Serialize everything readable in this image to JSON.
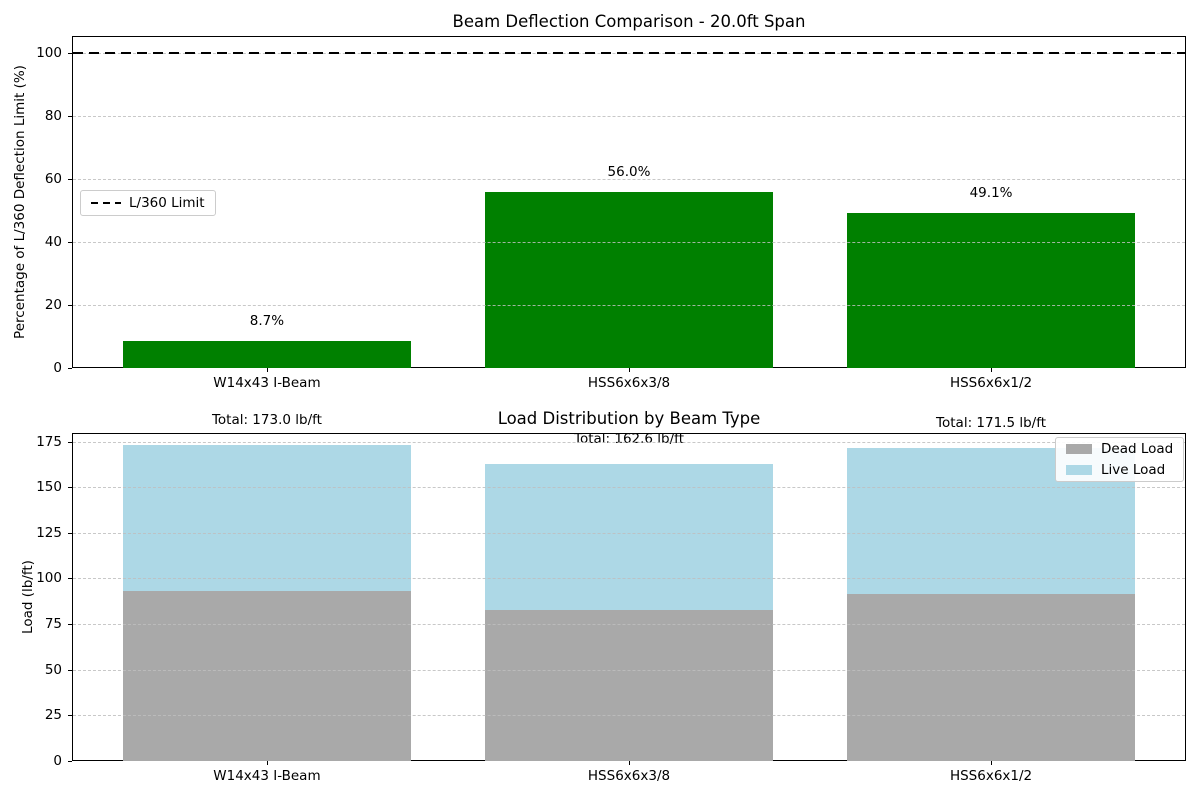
{
  "chart_data": [
    {
      "type": "bar",
      "title": "Beam Deflection Comparison - 20.0ft Span",
      "xlabel": "",
      "ylabel": "Percentage of L/360 Deflection Limit (%)",
      "categories": [
        "W14x43 I-Beam",
        "HSS6x6x3/8",
        "HSS6x6x1/2"
      ],
      "values": [
        8.7,
        56.0,
        49.1
      ],
      "value_labels": [
        "8.7%",
        "56.0%",
        "49.1%"
      ],
      "bar_color": "#008000",
      "yticks": [
        0,
        20,
        40,
        60,
        80,
        100
      ],
      "ylim": [
        0,
        105.5
      ],
      "grid": "horizontal dashed",
      "limit_line": {
        "value": 100,
        "color": "#000000",
        "style": "dashed",
        "legend_label": "L/360 Limit"
      },
      "legend_position": "center left"
    },
    {
      "type": "bar",
      "subtype": "stacked",
      "title": "Load Distribution by Beam Type",
      "xlabel": "",
      "ylabel": "Load (lb/ft)",
      "categories": [
        "W14x43 I-Beam",
        "HSS6x6x3/8",
        "HSS6x6x1/2"
      ],
      "series": [
        {
          "name": "Dead Load",
          "color": "#A9A9A9",
          "values": [
            93.0,
            82.6,
            91.5
          ]
        },
        {
          "name": "Live Load",
          "color": "#ADD8E6",
          "values": [
            80.0,
            80.0,
            80.0
          ]
        }
      ],
      "totals": [
        173.0,
        162.6,
        171.5
      ],
      "total_labels": [
        "Total: 173.0 lb/ft",
        "Total: 162.6 lb/ft",
        "Total: 171.5 lb/ft"
      ],
      "yticks": [
        0,
        25,
        50,
        75,
        100,
        125,
        150,
        175
      ],
      "ylim": [
        0,
        179.7
      ],
      "grid": "horizontal dashed",
      "legend_position": "upper right"
    }
  ]
}
